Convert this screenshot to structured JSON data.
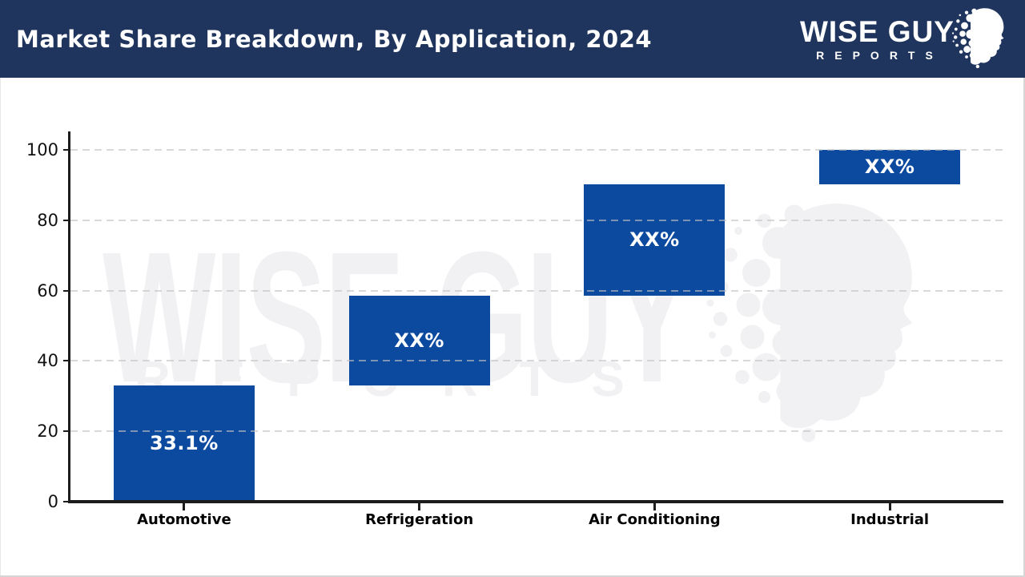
{
  "header": {
    "title": "Market Share Breakdown, By Application, 2024",
    "logo": {
      "wordmark": "WISE GUY",
      "subtext": "REPORTS"
    }
  },
  "watermark": {
    "line1": "WISE GUY",
    "line2": "REPORTS"
  },
  "chart_data": {
    "type": "waterfall",
    "title": "Market Share Breakdown, By Application, 2024",
    "categories": [
      "Automotive",
      "Refrigeration",
      "Air Conditioning",
      "Industrial"
    ],
    "segments": [
      {
        "category": "Automotive",
        "start": 0,
        "end": 33.1,
        "label": "33.1%"
      },
      {
        "category": "Refrigeration",
        "start": 33.1,
        "end": 58.6,
        "label": "XX%"
      },
      {
        "category": "Air Conditioning",
        "start": 58.6,
        "end": 90.3,
        "label": "XX%"
      },
      {
        "category": "Industrial",
        "start": 90.3,
        "end": 100,
        "label": "XX%"
      }
    ],
    "ylim": [
      0,
      100
    ],
    "yticks": [
      0,
      20,
      40,
      60,
      80,
      100
    ],
    "grid": "horizontal-dashed",
    "legend": "none",
    "xlabel": "",
    "ylabel": ""
  },
  "colors": {
    "header_bg": "#1f355e",
    "bar": "#0c4aa0",
    "bar_label": "#ffffff",
    "axis": "#1c1c1c",
    "grid": "#c2c2c2",
    "watermark": "#f1f1f3"
  }
}
